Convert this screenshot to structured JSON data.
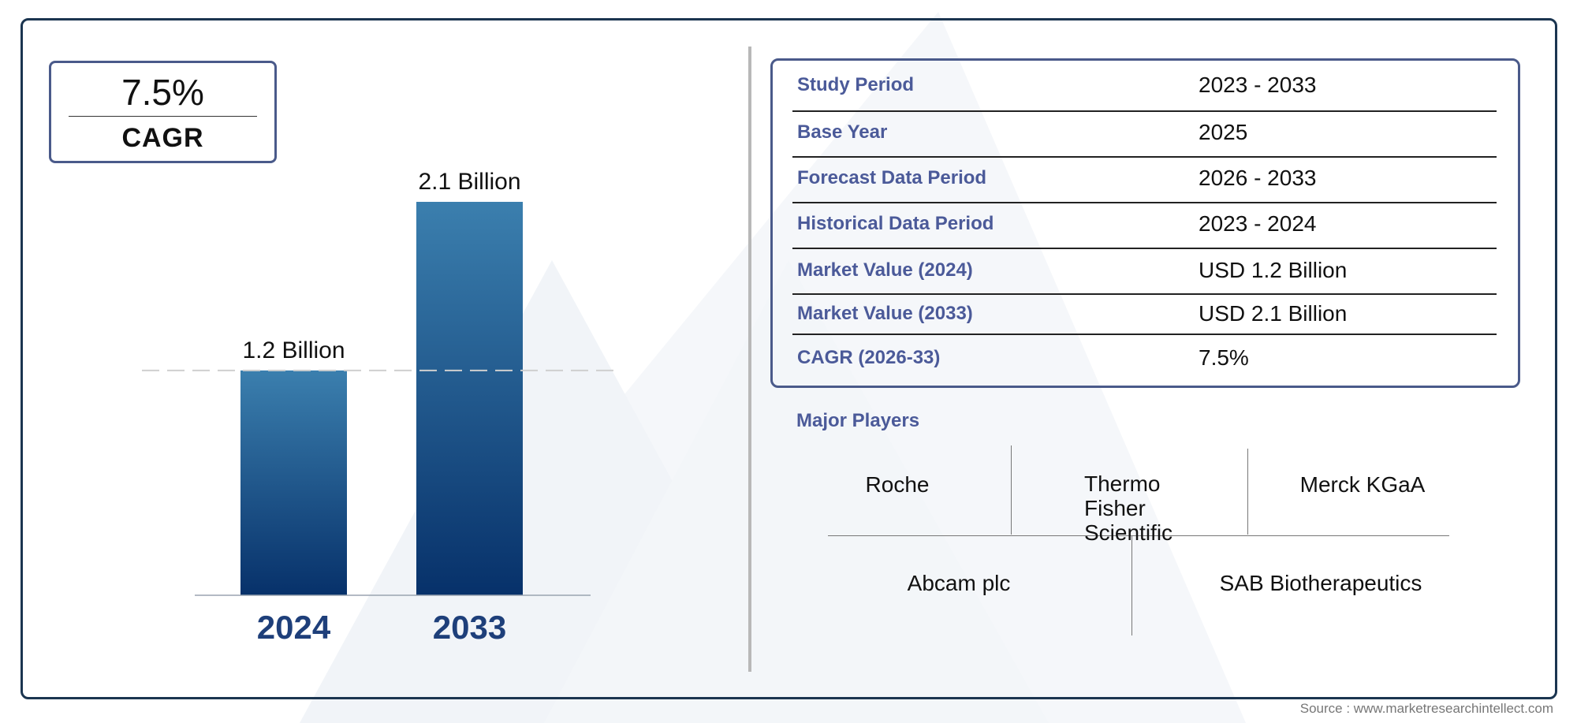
{
  "cagr_box": {
    "value": "7.5%",
    "label": "CAGR"
  },
  "chart_data": {
    "type": "bar",
    "categories": [
      "2024",
      "2033"
    ],
    "values": [
      1.2,
      2.1
    ],
    "data_labels": [
      "1.2 Billion",
      "2.1 Billion"
    ],
    "unit": "Billion",
    "reference_line": {
      "value": 1.2,
      "style": "dashed"
    },
    "colors": {
      "bar_top": "#3b7fae",
      "bar_bottom": "#07316a",
      "year_label": "#1e3f7a"
    }
  },
  "summary_table": {
    "rows": [
      {
        "label": "Study Period",
        "value": "2023 - 2033"
      },
      {
        "label": "Base Year",
        "value": "2025"
      },
      {
        "label": "Forecast Data Period",
        "value": "2026 - 2033"
      },
      {
        "label": "Historical Data Period",
        "value": "2023 - 2024"
      },
      {
        "label": "Market Value (2024)",
        "value": "USD 1.2 Billion"
      },
      {
        "label": "Market Value (2033)",
        "value": "USD 2.1 Billion"
      },
      {
        "label": "CAGR (2026-33)",
        "value": "7.5%"
      }
    ]
  },
  "major_players": {
    "title": "Major Players",
    "players": [
      "Roche",
      "Thermo Fisher Scientific",
      "Merck KGaA",
      "Abcam plc",
      "SAB Biotherapeutics"
    ]
  },
  "source": "Source : www.marketresearchintellect.com",
  "colors": {
    "frame": "#1b3550",
    "label": "#4b5a99",
    "watermark": "#f1f4f8"
  }
}
